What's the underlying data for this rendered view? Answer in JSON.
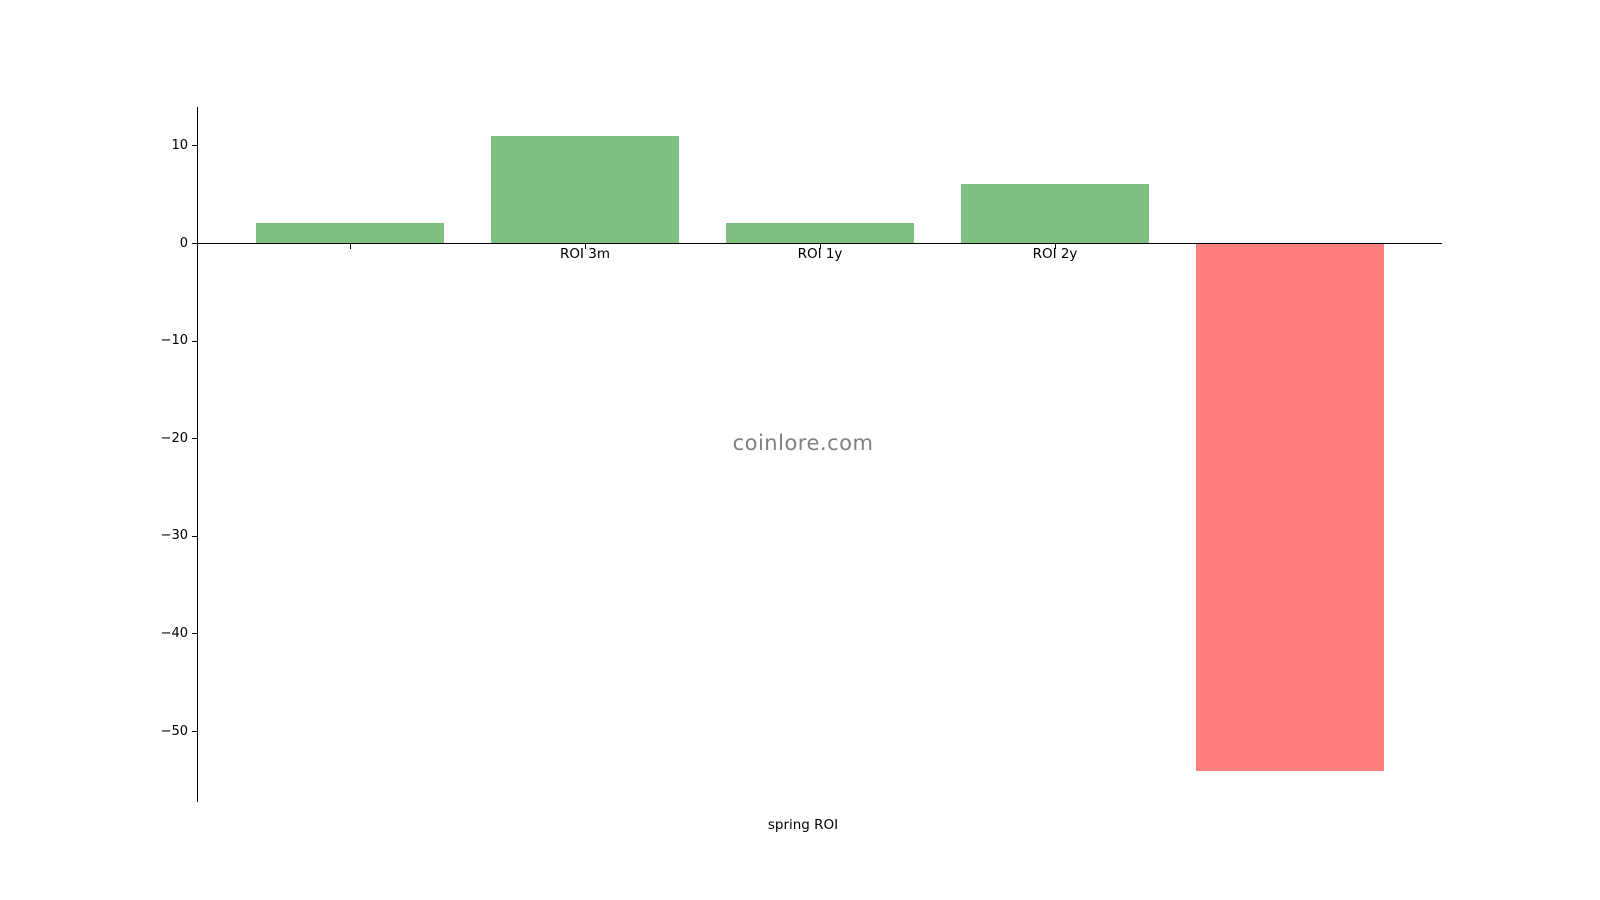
{
  "watermark": "coinlore.com",
  "chart_data": {
    "type": "bar",
    "title": "",
    "xlabel": "spring ROI",
    "ylabel": "",
    "categories": [
      "",
      "ROI 3m",
      "ROI 1y",
      "ROI 2y",
      ""
    ],
    "values": [
      2,
      11,
      2,
      6,
      -54
    ],
    "yticks": [
      10,
      0,
      -10,
      -20,
      -30,
      -40,
      -50
    ],
    "ylim": [
      -57.5,
      14
    ],
    "grid": false,
    "legend": "none",
    "colors": {
      "positive": "#7fbf7f",
      "negative": "#ff7f7f",
      "axis": "#000000",
      "tick_text": "#000000",
      "watermark": "#808080",
      "background": "#ffffff"
    }
  }
}
